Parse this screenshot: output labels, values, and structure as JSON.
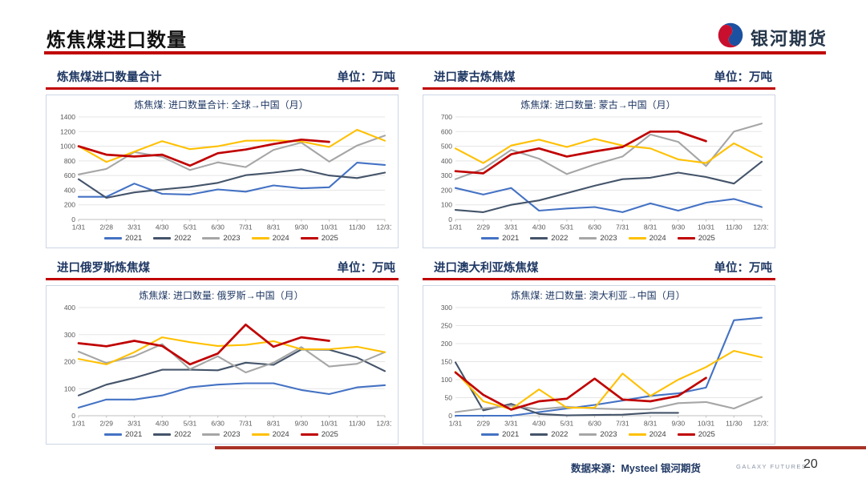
{
  "page": {
    "title": "炼焦煤进口数量",
    "footer_source": "数据来源：Mysteel 银河期货",
    "footer_brand": "GALAXY FUTURES",
    "page_number": "20"
  },
  "logo": {
    "name": "银河期货",
    "red": "#c8102e",
    "blue": "#1b51a0"
  },
  "palette": {
    "2021": "#4472c4",
    "2022": "#44546a",
    "2023": "#a6a6a6",
    "2024": "#ffc000",
    "2025": "#c00000"
  },
  "accent_red": "#c00000",
  "chart_data": [
    {
      "type": "line",
      "panel_title": "炼焦煤进口数量合计",
      "unit": "单位：万吨",
      "title": "炼焦煤: 进口数量合计: 全球→中国（月）",
      "categories": [
        "1/31",
        "2/28",
        "3/31",
        "4/30",
        "5/31",
        "6/30",
        "7/31",
        "8/31",
        "9/30",
        "10/31",
        "11/30",
        "12/31"
      ],
      "ylim": [
        0,
        1400
      ],
      "ytick_step": 200,
      "grid": true,
      "legend_position": "bottom",
      "series": [
        {
          "name": "2021",
          "color": "#4472c4",
          "values": [
            310,
            310,
            490,
            350,
            340,
            410,
            380,
            465,
            425,
            440,
            775,
            745
          ]
        },
        {
          "name": "2022",
          "color": "#44546a",
          "values": [
            550,
            295,
            370,
            410,
            445,
            500,
            605,
            640,
            685,
            600,
            565,
            640
          ]
        },
        {
          "name": "2023",
          "color": "#a6a6a6",
          "values": [
            615,
            690,
            920,
            855,
            675,
            780,
            715,
            950,
            1050,
            790,
            1010,
            1145
          ]
        },
        {
          "name": "2024",
          "color": "#ffc000",
          "values": [
            1000,
            785,
            925,
            1070,
            960,
            1000,
            1075,
            1080,
            1065,
            990,
            1225,
            1075
          ]
        },
        {
          "name": "2025",
          "color": "#c00000",
          "values": [
            1000,
            885,
            860,
            885,
            735,
            905,
            955,
            1030,
            1090,
            1060,
            null,
            null
          ]
        }
      ]
    },
    {
      "type": "line",
      "panel_title": "进口蒙古炼焦煤",
      "unit": "单位：万吨",
      "title": "炼焦煤: 进口数量: 蒙古→中国（月）",
      "categories": [
        "1/31",
        "2/29",
        "3/31",
        "4/30",
        "5/31",
        "6/30",
        "7/31",
        "8/31",
        "9/30",
        "10/31",
        "11/30",
        "12/31"
      ],
      "ylim": [
        0,
        700
      ],
      "ytick_step": 100,
      "grid": true,
      "legend_position": "bottom",
      "series": [
        {
          "name": "2021",
          "color": "#4472c4",
          "values": [
            215,
            170,
            215,
            60,
            75,
            85,
            50,
            110,
            60,
            115,
            140,
            85
          ]
        },
        {
          "name": "2022",
          "color": "#44546a",
          "values": [
            65,
            50,
            100,
            130,
            180,
            230,
            275,
            285,
            320,
            290,
            245,
            395
          ]
        },
        {
          "name": "2023",
          "color": "#a6a6a6",
          "values": [
            275,
            345,
            475,
            415,
            310,
            375,
            430,
            580,
            530,
            365,
            600,
            655
          ]
        },
        {
          "name": "2024",
          "color": "#ffc000",
          "values": [
            485,
            385,
            505,
            545,
            495,
            550,
            505,
            485,
            410,
            385,
            520,
            425
          ]
        },
        {
          "name": "2025",
          "color": "#c00000",
          "values": [
            330,
            315,
            445,
            485,
            430,
            465,
            495,
            600,
            600,
            535,
            null,
            null
          ]
        }
      ]
    },
    {
      "type": "line",
      "panel_title": "进口俄罗斯炼焦煤",
      "unit": "单位：万吨",
      "title": "炼焦煤: 进口数量: 俄罗斯→中国（月）",
      "categories": [
        "1/31",
        "2/29",
        "3/31",
        "4/30",
        "5/31",
        "6/30",
        "7/31",
        "8/31",
        "9/30",
        "10/31",
        "11/30",
        "12/31"
      ],
      "ylim": [
        0,
        400
      ],
      "ytick_step": 100,
      "grid": true,
      "legend_position": "bottom",
      "series": [
        {
          "name": "2021",
          "color": "#4472c4",
          "values": [
            30,
            60,
            60,
            75,
            105,
            115,
            120,
            120,
            95,
            80,
            105,
            113
          ]
        },
        {
          "name": "2022",
          "color": "#44546a",
          "values": [
            75,
            115,
            140,
            170,
            170,
            168,
            196,
            188,
            245,
            244,
            215,
            165
          ]
        },
        {
          "name": "2023",
          "color": "#a6a6a6",
          "values": [
            237,
            195,
            220,
            265,
            172,
            220,
            160,
            196,
            254,
            182,
            192,
            235
          ]
        },
        {
          "name": "2024",
          "color": "#ffc000",
          "values": [
            210,
            190,
            235,
            290,
            272,
            258,
            262,
            276,
            246,
            246,
            255,
            235
          ]
        },
        {
          "name": "2025",
          "color": "#c00000",
          "values": [
            268,
            257,
            277,
            258,
            190,
            230,
            337,
            255,
            290,
            277,
            null,
            null
          ]
        }
      ]
    },
    {
      "type": "line",
      "panel_title": "进口澳大利亚炼焦煤",
      "unit": "单位：万吨",
      "title": "炼焦煤: 进口数量: 澳大利亚→中国（月）",
      "categories": [
        "1/31",
        "2/29",
        "3/31",
        "4/30",
        "5/31",
        "6/30",
        "7/31",
        "8/31",
        "9/30",
        "10/31",
        "11/30",
        "12/31"
      ],
      "ylim": [
        0,
        300
      ],
      "ytick_step": 50,
      "grid": true,
      "legend_position": "bottom",
      "series": [
        {
          "name": "2021",
          "color": "#4472c4",
          "values": [
            0,
            0,
            0,
            10,
            20,
            30,
            42,
            55,
            62,
            78,
            265,
            272
          ]
        },
        {
          "name": "2022",
          "color": "#44546a",
          "values": [
            148,
            15,
            33,
            5,
            1,
            2,
            3,
            8,
            8,
            null,
            null,
            null
          ]
        },
        {
          "name": "2023",
          "color": "#a6a6a6",
          "values": [
            10,
            20,
            28,
            18,
            25,
            20,
            18,
            18,
            35,
            38,
            20,
            52
          ]
        },
        {
          "name": "2024",
          "color": "#ffc000",
          "values": [
            122,
            40,
            18,
            73,
            22,
            22,
            117,
            55,
            100,
            135,
            180,
            162
          ]
        },
        {
          "name": "2025",
          "color": "#c00000",
          "values": [
            120,
            58,
            17,
            40,
            47,
            103,
            45,
            40,
            55,
            105,
            null,
            null
          ]
        }
      ]
    }
  ]
}
